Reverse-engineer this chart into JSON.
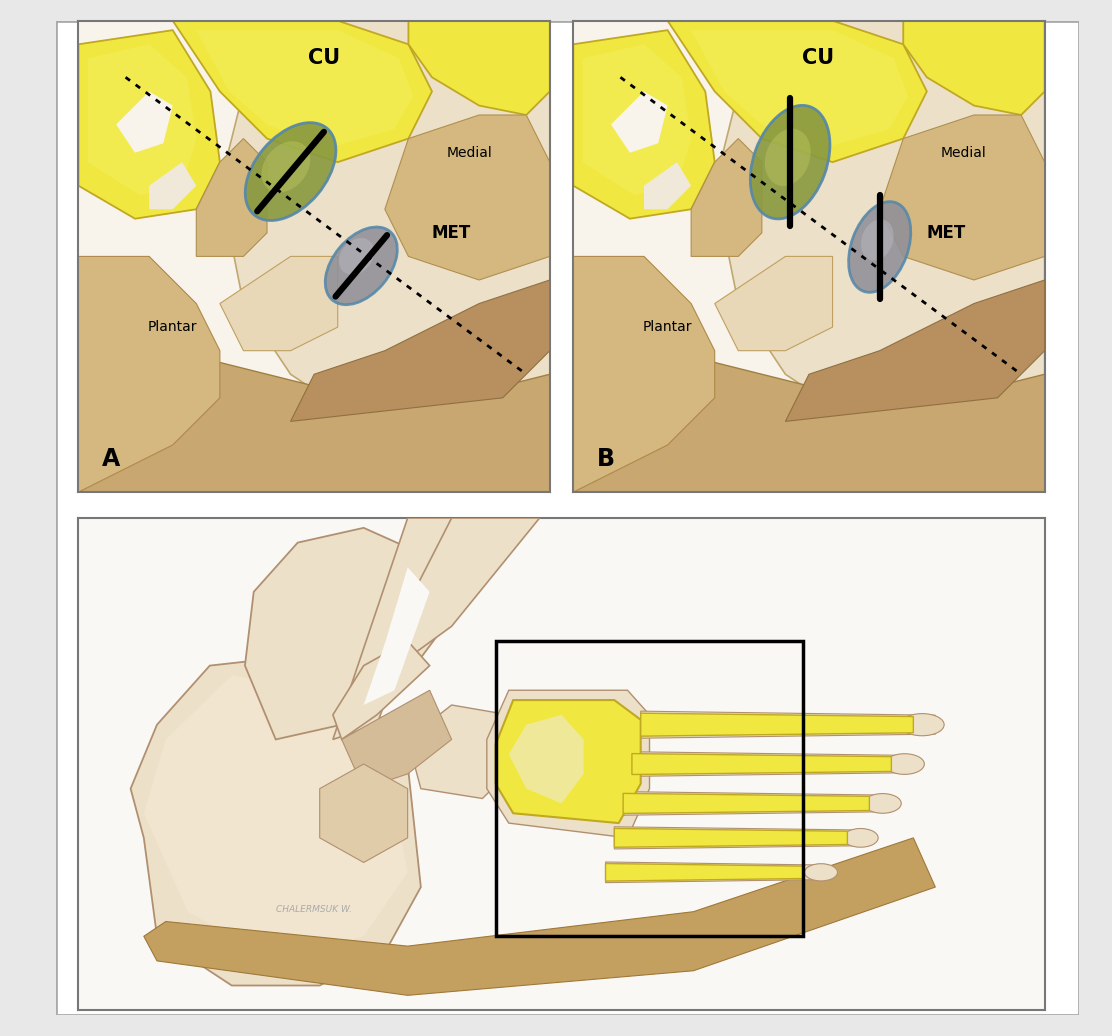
{
  "bg_color": "#e8e8e8",
  "panel_bg": "#ffffff",
  "bone_yellow": "#f0e840",
  "bone_yellow_edge": "#c8b030",
  "bone_cream": "#f0e8d8",
  "bone_cream2": "#ede0c8",
  "bone_tan": "#d4b890",
  "bone_dark_tan": "#c4a070",
  "bone_brown": "#b08858",
  "bone_very_light": "#f8f4ec",
  "cuneiform_green": "#8a9a40",
  "cuneiform_green_hi": "#b0be60",
  "cuneiform_green_dark": "#707830",
  "met_gray": "#909090",
  "met_gray2": "#b0b0b8",
  "met_gray_dark": "#707078",
  "outline_blue": "#5588aa",
  "border_color": "#888888",
  "label_A": "A",
  "label_B": "B",
  "label_CU": "CU",
  "label_Medial": "Medial",
  "label_MET": "MET",
  "label_Plantar": "Plantar",
  "label_sig": "CHALERMSUK W."
}
